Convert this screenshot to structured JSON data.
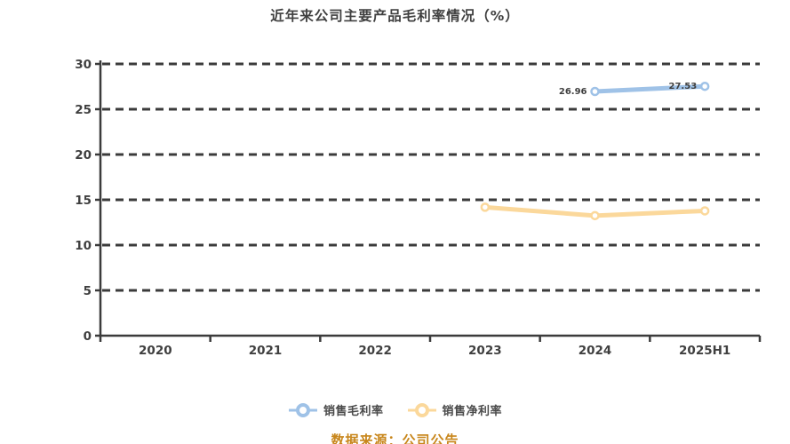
{
  "chart_data": {
    "type": "line",
    "title": "近年来公司主要产品毛利率情况（%）",
    "categories": [
      "2020",
      "2021",
      "2022",
      "2023",
      "2024",
      "2025H1"
    ],
    "series": [
      {
        "name": "销售毛利率",
        "color": "#9FC2E7",
        "label_color": "#A6C5EA",
        "values": [
          null,
          null,
          null,
          null,
          26.96,
          27.53
        ],
        "point_labels": [
          null,
          null,
          null,
          null,
          "26.96",
          "27.53"
        ]
      },
      {
        "name": "销售净利率",
        "color": "#FBD89B",
        "label_color": "#FBD89B",
        "values": [
          null,
          null,
          null,
          14.18,
          13.25,
          13.78
        ],
        "point_labels": [
          null,
          null,
          null,
          null,
          null,
          null
        ]
      }
    ],
    "ylim": [
      0,
      30
    ],
    "ytick_step": 5,
    "ytick_labels": [
      "0",
      "5",
      "10",
      "15",
      "20",
      "25",
      "30"
    ],
    "grid": "horizontal-dashed",
    "legend_position": "bottom",
    "axis_color": "#3b3b3b",
    "tick_label_color": "#3f3f3f",
    "title_color": "#404040"
  },
  "caption": {
    "text": "数据来源：公司公告",
    "color": "#C8861B"
  }
}
